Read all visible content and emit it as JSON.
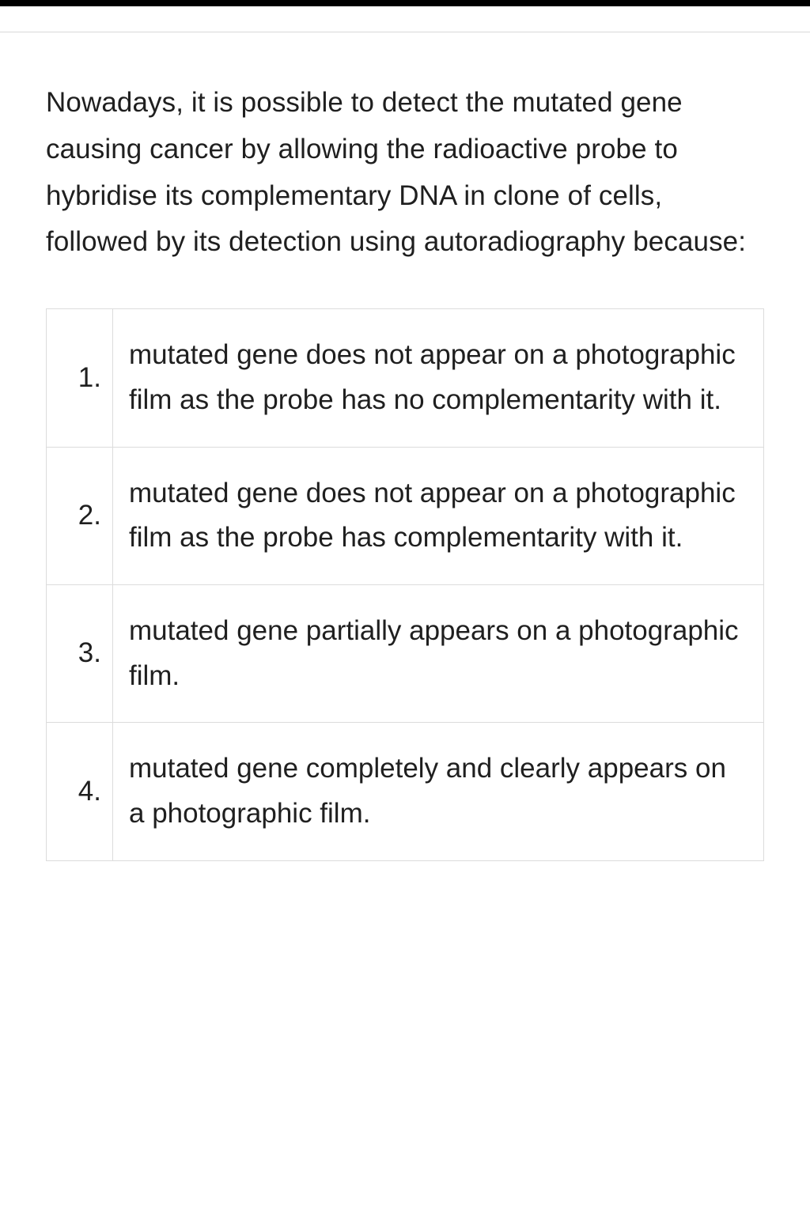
{
  "question": "Nowadays, it is possible to detect the mutated gene causing cancer by allowing the radioactive probe to hybridise its complementary DNA in clone of cells, followed by its detection using autoradiography because:",
  "options": [
    {
      "num": "1.",
      "text": "mutated gene does not appear on a photographic film as the probe has no complementarity with it."
    },
    {
      "num": "2.",
      "text": "mutated gene does not appear on a photographic film as the probe has complementarity with it."
    },
    {
      "num": "3.",
      "text": "mutated gene partially appears on a photographic film."
    },
    {
      "num": "4.",
      "text": "mutated gene completely and clearly appears on a photographic film."
    }
  ],
  "colors": {
    "text": "#1f1f1f",
    "border": "#dcdcdc",
    "topbar": "#000000",
    "background": "#ffffff"
  }
}
